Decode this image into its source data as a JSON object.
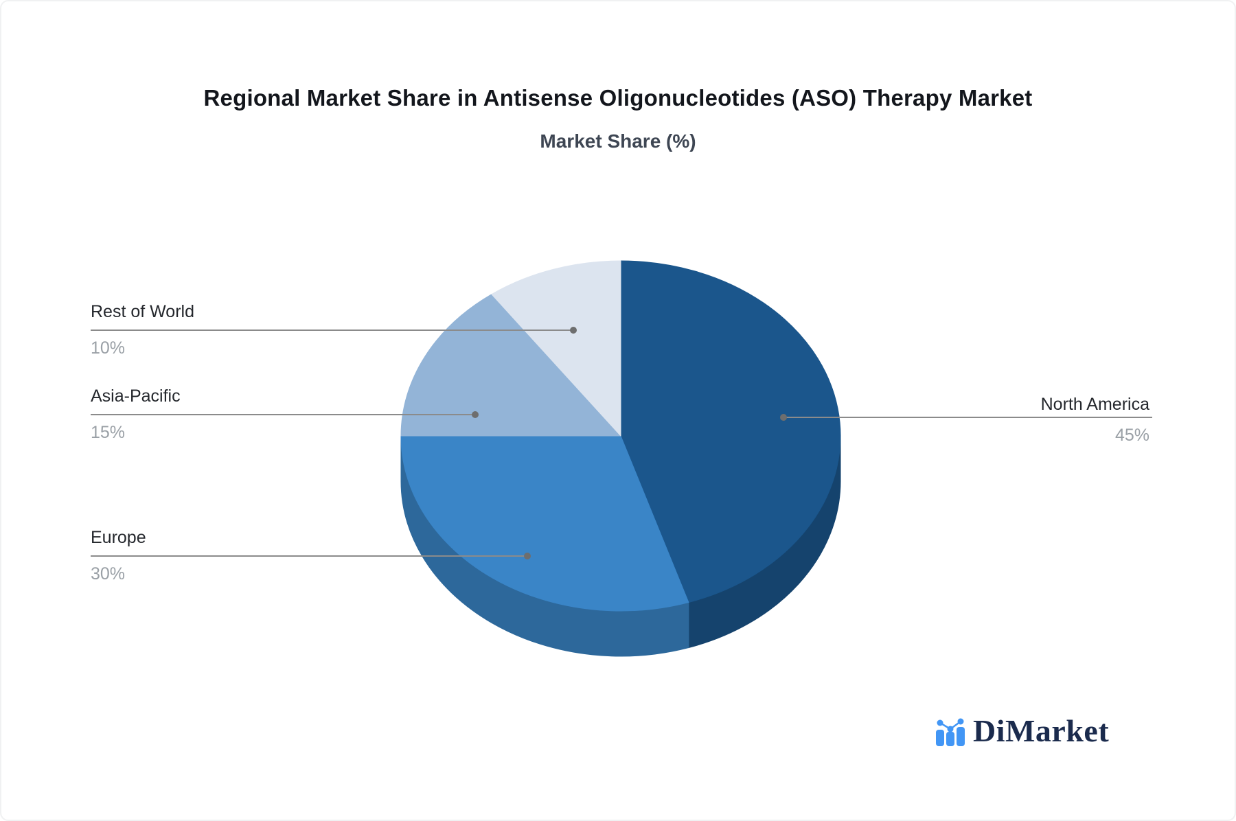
{
  "header": {
    "title": "Regional Market Share in Antisense Oligonucleotides (ASO) Therapy Market",
    "subtitle": "Market Share (%)"
  },
  "chart_data": {
    "type": "pie",
    "style": "3d",
    "title": "Regional Market Share in Antisense Oligonucleotides (ASO) Therapy Market",
    "subtitle": "Market Share (%)",
    "unit": "%",
    "direction": "clockwise",
    "start_angle_deg": 0,
    "legend_position": "callout-labels",
    "categories": [
      "North America",
      "Europe",
      "Asia-Pacific",
      "Rest of World"
    ],
    "values": [
      45,
      30,
      15,
      10
    ],
    "slice_colors": [
      "#1b568c",
      "#3a85c7",
      "#93b4d7",
      "#dce4ef"
    ],
    "callout_line_color": "#8b8b8b",
    "callout_dot_color": "#6e6e6e"
  },
  "branding": {
    "logo_text": "DiMarket",
    "logo_icon": "bar-line-chart-icon",
    "icon_color": "#4296f5",
    "text_color": "#1b2b4d"
  }
}
